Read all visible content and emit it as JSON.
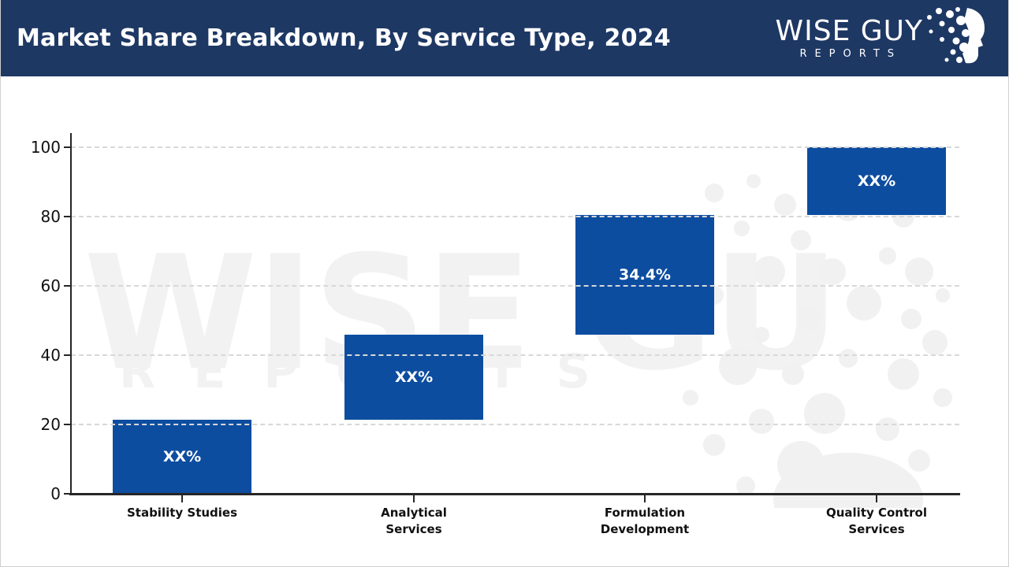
{
  "header": {
    "title": "Market Share Breakdown, By Service Type, 2024",
    "logo": {
      "name": "WISE GUY",
      "sub": "REPORTS"
    }
  },
  "watermark": {
    "big": "WISE GU",
    "sub": "REPORTS"
  },
  "colors": {
    "header_bg": "#1e3864",
    "bar": "#0d4da0",
    "bar_label": "#ffffff",
    "watermark": "#f2f2f2",
    "grid": "#d8d8d8",
    "axis": "#262626"
  },
  "chart_data": {
    "type": "bar",
    "variant": "floating-waterfall",
    "title": "Market Share Breakdown, By Service Type, 2024",
    "categories": [
      "Stability Studies",
      "Analytical Services",
      "Formulation Development",
      "Quality Control Services"
    ],
    "category_lines": [
      [
        "Stability Studies"
      ],
      [
        "Analytical",
        "Services"
      ],
      [
        "Formulation",
        "Development"
      ],
      [
        "Quality Control",
        "Services"
      ]
    ],
    "segments": [
      {
        "category": "Stability Studies",
        "start": 0,
        "end": 21.4,
        "label": "XX%"
      },
      {
        "category": "Analytical Services",
        "start": 21.4,
        "end": 46,
        "label": "XX%"
      },
      {
        "category": "Formulation Development",
        "start": 46,
        "end": 80.4,
        "label": "34.4%"
      },
      {
        "category": "Quality Control Services",
        "start": 80.4,
        "end": 100,
        "label": "XX%"
      }
    ],
    "y_ticks": [
      0,
      20,
      40,
      60,
      80,
      100
    ],
    "ylim": [
      0,
      104
    ],
    "xlabel": "",
    "ylabel": "",
    "grid": "horizontal-dashed",
    "legend": "none",
    "bar_color": "#0d4da0",
    "bar_label_color": "#ffffff"
  }
}
